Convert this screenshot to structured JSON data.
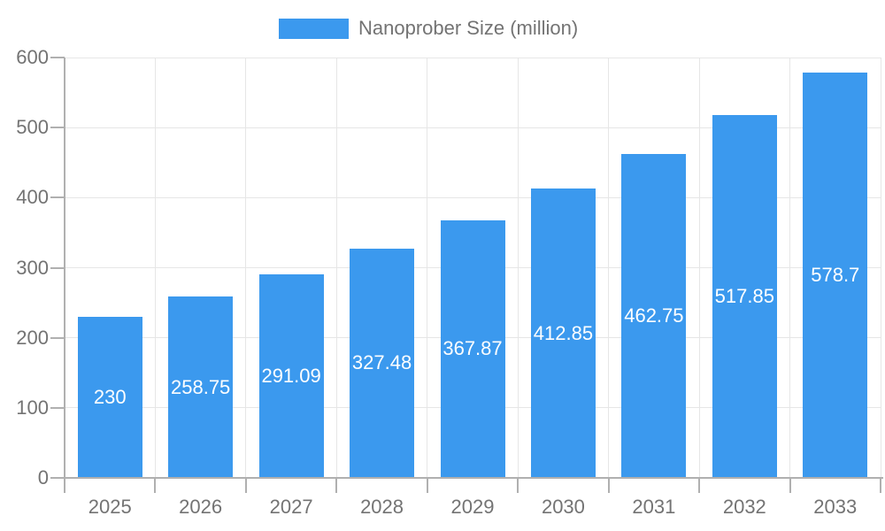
{
  "chart_data": {
    "type": "bar",
    "title": "",
    "legend": {
      "label": "Nanoprober Size (million)",
      "position": "top"
    },
    "categories": [
      "2025",
      "2026",
      "2027",
      "2028",
      "2029",
      "2030",
      "2031",
      "2032",
      "2033"
    ],
    "series": [
      {
        "name": "Nanoprober Size (million)",
        "values": [
          230,
          258.75,
          291.09,
          327.48,
          367.87,
          412.85,
          462.75,
          517.85,
          578.7
        ],
        "value_labels": [
          "230",
          "258.75",
          "291.09",
          "327.48",
          "367.87",
          "412.85",
          "462.75",
          "517.85",
          "578.7"
        ]
      }
    ],
    "xlabel": "",
    "ylabel": "",
    "ylim": [
      0,
      600
    ],
    "y_ticks": [
      "0",
      "100",
      "200",
      "300",
      "400",
      "500",
      "600"
    ],
    "grid": true,
    "legend_interactive": true,
    "colors": {
      "bar": "#3B99EE",
      "grid": "#E6E6E6",
      "axis": "#B0B0B0",
      "text": "#737373",
      "value_label": "#FFFFFF",
      "background": "#FFFFFF"
    }
  }
}
